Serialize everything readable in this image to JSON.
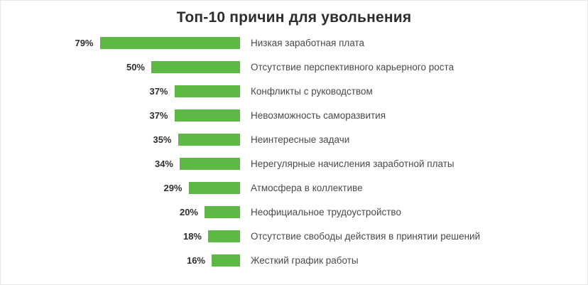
{
  "title": "Топ-10 причин для увольнения",
  "colors": {
    "bar": "#5db944",
    "title": "#2d2d2d",
    "label": "#4a4a4a"
  },
  "chart_data": {
    "type": "bar",
    "orientation": "horizontal",
    "bar_alignment": "right",
    "title": "Топ-10 причин для увольнения",
    "unit": "%",
    "categories": [
      "Низкая заработная плата",
      "Отсутствие перспективного карьерного роста",
      "Конфликты с руководством",
      "Невозможность саморазвития",
      "Неинтересные задачи",
      "Нерегулярные начисления заработной платы",
      "Атмосфера в коллективе",
      "Неофициальное трудоустройство",
      "Отсутствие свободы действия в принятии решений",
      "Жесткий график работы"
    ],
    "values": [
      79,
      50,
      37,
      37,
      35,
      34,
      29,
      20,
      18,
      16
    ],
    "xlim": [
      0,
      80
    ],
    "grid": false,
    "legend": false,
    "value_labels": "left-of-bar",
    "category_labels": "right-of-bar"
  }
}
